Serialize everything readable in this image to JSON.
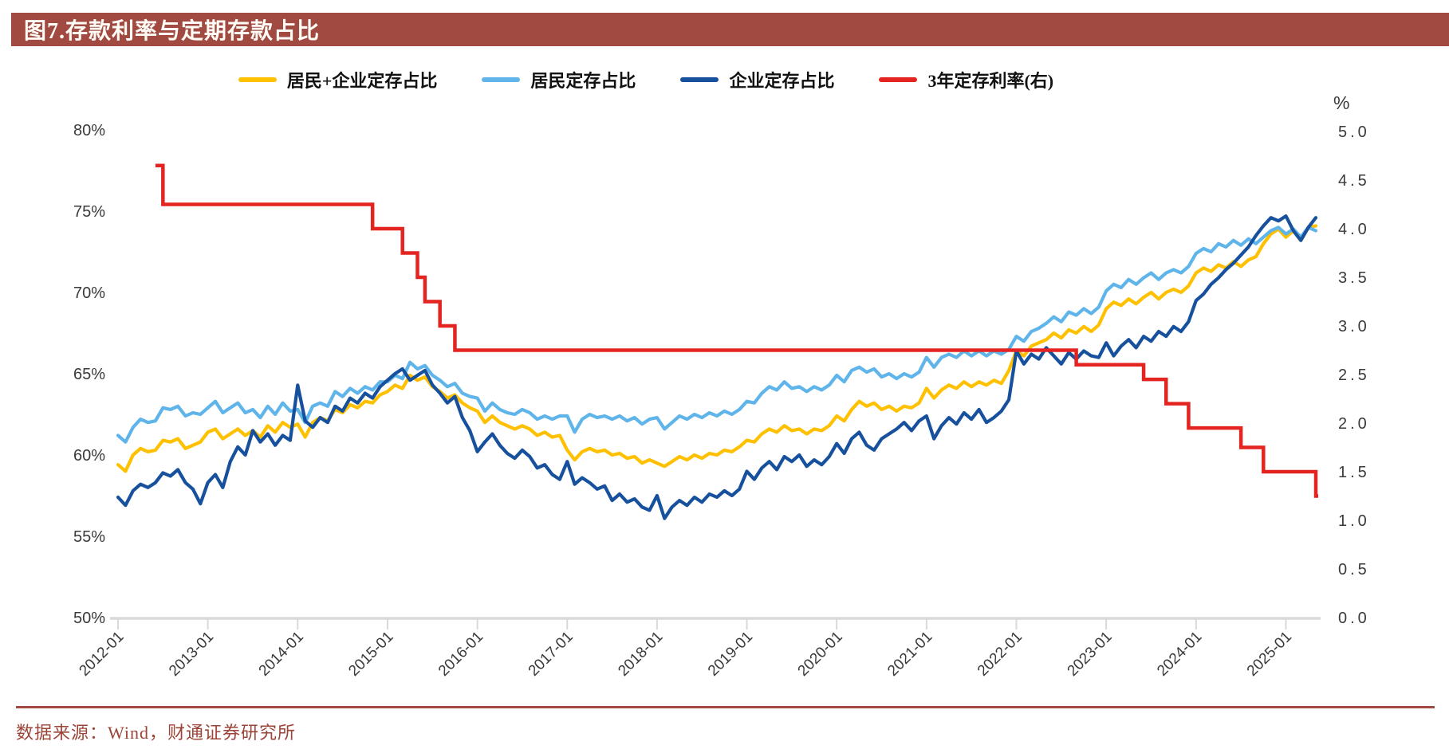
{
  "title": "图7.存款利率与定期存款占比",
  "source": "数据来源：Wind，财通证券研究所",
  "colors": {
    "title_bar_bg": "#A04A42",
    "title_text": "#FFFDF6",
    "source_text": "#9C4437",
    "divider": "#A04A42",
    "axis_text": "#3A3A3A",
    "axis_line": "#D9D9D9"
  },
  "legend": [
    {
      "label": "居民+企业定存占比",
      "color": "#FFC000"
    },
    {
      "label": "居民定存占比",
      "color": "#5FB4E9"
    },
    {
      "label": "企业定存占比",
      "color": "#17519E"
    },
    {
      "label": "3年定存利率(右)",
      "color": "#E32421"
    }
  ],
  "chart_data": {
    "type": "line",
    "title": "存款利率与定期存款占比",
    "frequency": "monthly",
    "start": "2012-01",
    "end": "2025-05",
    "grid": false,
    "legend_position": "top",
    "x_tick_labels": [
      "2012-01",
      "2013-01",
      "2014-01",
      "2015-01",
      "2016-01",
      "2017-01",
      "2018-01",
      "2019-01",
      "2020-01",
      "2021-01",
      "2022-01",
      "2023-01",
      "2024-01",
      "2025-01"
    ],
    "left_axis": {
      "min": 50,
      "max": 80,
      "labels": [
        "50%",
        "55%",
        "60%",
        "65%",
        "70%",
        "75%",
        "80%"
      ]
    },
    "right_axis": {
      "min": 0,
      "max": 5,
      "unit": "%",
      "labels": [
        "0.0",
        "0.5",
        "1.0",
        "1.5",
        "2.0",
        "2.5",
        "3.0",
        "3.5",
        "4.0",
        "4.5",
        "5.0"
      ]
    },
    "series": [
      {
        "name": "居民+企业定存占比",
        "axis": "left",
        "color": "#FFC000",
        "style": "line",
        "values": [
          59.4,
          59.0,
          60.0,
          60.4,
          60.2,
          60.3,
          60.9,
          60.8,
          61.0,
          60.4,
          60.6,
          60.8,
          61.4,
          61.6,
          61.0,
          61.3,
          61.6,
          61.2,
          61.5,
          61.1,
          61.8,
          61.4,
          62.0,
          61.7,
          61.9,
          61.1,
          62.0,
          62.3,
          62.1,
          62.8,
          62.6,
          63.1,
          62.9,
          63.3,
          63.2,
          63.7,
          63.9,
          64.3,
          64.1,
          64.9,
          64.6,
          64.8,
          64.2,
          63.9,
          63.5,
          63.7,
          63.2,
          62.9,
          62.7,
          62.0,
          62.4,
          62.0,
          61.8,
          61.6,
          61.8,
          61.6,
          61.2,
          61.4,
          61.1,
          61.2,
          60.3,
          59.7,
          60.2,
          60.4,
          60.2,
          60.3,
          60.0,
          60.1,
          59.8,
          59.9,
          59.5,
          59.7,
          59.5,
          59.3,
          59.6,
          59.9,
          59.7,
          60.0,
          59.8,
          60.1,
          60.0,
          60.3,
          60.2,
          60.5,
          60.9,
          60.8,
          61.3,
          61.6,
          61.4,
          61.8,
          61.5,
          61.6,
          61.3,
          61.6,
          61.5,
          61.8,
          62.4,
          62.1,
          62.8,
          63.3,
          63.0,
          63.2,
          62.8,
          63.0,
          62.7,
          63.0,
          62.9,
          63.2,
          64.1,
          63.5,
          64.0,
          64.3,
          64.1,
          64.5,
          64.2,
          64.5,
          64.3,
          64.6,
          64.4,
          65.2,
          66.4,
          66.1,
          66.7,
          66.9,
          67.1,
          67.5,
          67.2,
          67.7,
          67.5,
          67.9,
          67.6,
          68.0,
          69.0,
          69.4,
          69.2,
          69.6,
          69.3,
          69.7,
          70.0,
          69.6,
          70.0,
          70.2,
          70.0,
          70.4,
          71.2,
          71.5,
          71.3,
          71.7,
          71.5,
          71.9,
          71.6,
          72.0,
          72.2,
          73.0,
          73.6,
          73.9,
          73.4,
          73.8,
          73.2,
          74.0,
          74.1
        ]
      },
      {
        "name": "居民定存占比",
        "axis": "left",
        "color": "#5FB4E9",
        "style": "line",
        "values": [
          61.2,
          60.8,
          61.7,
          62.2,
          62.0,
          62.1,
          62.9,
          62.8,
          63.0,
          62.4,
          62.6,
          62.5,
          62.9,
          63.3,
          62.6,
          62.9,
          63.2,
          62.6,
          62.8,
          62.3,
          63.0,
          62.5,
          63.2,
          62.7,
          62.8,
          62.0,
          63.0,
          63.2,
          63.0,
          63.9,
          63.6,
          64.1,
          63.8,
          64.2,
          64.0,
          64.5,
          64.5,
          64.9,
          64.7,
          65.7,
          65.3,
          65.5,
          64.9,
          64.6,
          64.2,
          64.4,
          63.8,
          63.6,
          63.5,
          62.7,
          63.2,
          62.8,
          62.6,
          62.5,
          62.8,
          62.6,
          62.2,
          62.4,
          62.2,
          62.4,
          62.4,
          61.4,
          62.2,
          62.5,
          62.3,
          62.4,
          62.2,
          62.4,
          62.1,
          62.3,
          61.9,
          62.2,
          62.3,
          61.6,
          62.0,
          62.4,
          62.2,
          62.5,
          62.3,
          62.6,
          62.4,
          62.7,
          62.5,
          62.8,
          63.3,
          63.2,
          63.8,
          64.2,
          64.0,
          64.5,
          64.1,
          64.2,
          63.9,
          64.2,
          64.0,
          64.3,
          64.9,
          64.5,
          65.2,
          65.4,
          65.1,
          65.3,
          64.8,
          65.0,
          64.7,
          65.0,
          64.8,
          65.1,
          66.0,
          65.4,
          66.0,
          66.2,
          66.0,
          66.4,
          66.1,
          66.4,
          66.1,
          66.4,
          66.2,
          66.5,
          67.3,
          67.0,
          67.6,
          67.8,
          68.1,
          68.5,
          68.2,
          68.8,
          68.6,
          69.0,
          68.7,
          69.1,
          70.1,
          70.5,
          70.3,
          70.8,
          70.5,
          70.9,
          71.2,
          70.8,
          71.2,
          71.4,
          71.2,
          71.6,
          72.4,
          72.7,
          72.5,
          73.0,
          72.8,
          73.2,
          72.9,
          73.3,
          73.0,
          73.4,
          73.8,
          74.0,
          73.6,
          73.9,
          73.4,
          74.0,
          73.8
        ]
      },
      {
        "name": "企业定存占比",
        "axis": "left",
        "color": "#17519E",
        "style": "line",
        "values": [
          57.4,
          56.9,
          57.8,
          58.2,
          58.0,
          58.3,
          58.9,
          58.7,
          59.1,
          58.3,
          57.9,
          57.0,
          58.3,
          58.8,
          58.0,
          59.6,
          60.5,
          60.0,
          61.5,
          60.8,
          61.3,
          60.6,
          61.2,
          60.9,
          64.3,
          62.1,
          61.7,
          62.3,
          62.0,
          63.0,
          62.7,
          63.5,
          63.2,
          63.8,
          63.5,
          64.2,
          64.6,
          65.0,
          65.3,
          64.6,
          64.9,
          65.2,
          64.3,
          63.8,
          63.2,
          63.6,
          62.3,
          61.5,
          60.2,
          60.8,
          61.3,
          60.6,
          60.1,
          59.8,
          60.3,
          59.9,
          59.2,
          59.4,
          58.8,
          58.5,
          59.6,
          58.2,
          58.6,
          58.3,
          57.9,
          58.1,
          57.2,
          57.6,
          57.1,
          57.3,
          56.8,
          56.6,
          57.5,
          56.1,
          56.8,
          57.2,
          56.9,
          57.4,
          57.1,
          57.6,
          57.4,
          57.8,
          57.5,
          57.9,
          59.0,
          58.5,
          59.2,
          59.6,
          59.1,
          59.9,
          59.6,
          60.0,
          59.3,
          59.7,
          59.4,
          59.9,
          60.7,
          60.1,
          61.0,
          61.4,
          60.6,
          60.3,
          61.0,
          61.3,
          61.6,
          62.0,
          61.5,
          62.1,
          62.4,
          61.0,
          61.8,
          62.3,
          61.9,
          62.6,
          62.2,
          62.8,
          62.0,
          62.3,
          62.7,
          63.4,
          66.4,
          65.6,
          66.2,
          65.9,
          66.6,
          66.1,
          65.6,
          66.3,
          65.9,
          66.4,
          66.1,
          66.0,
          66.9,
          66.1,
          66.7,
          67.1,
          66.6,
          67.3,
          67.0,
          67.6,
          67.3,
          67.9,
          67.6,
          68.2,
          69.5,
          69.9,
          70.5,
          70.9,
          71.4,
          71.8,
          72.3,
          72.8,
          73.5,
          74.1,
          74.6,
          74.4,
          74.7,
          73.8,
          73.2,
          74.0,
          74.6
        ]
      },
      {
        "name": "3年定存利率(右)",
        "axis": "right",
        "color": "#E32421",
        "style": "step",
        "values": [
          null,
          null,
          null,
          null,
          null,
          4.65,
          4.25,
          4.25,
          4.25,
          4.25,
          4.25,
          4.25,
          4.25,
          4.25,
          4.25,
          4.25,
          4.25,
          4.25,
          4.25,
          4.25,
          4.25,
          4.25,
          4.25,
          4.25,
          4.25,
          4.25,
          4.25,
          4.25,
          4.25,
          4.25,
          4.25,
          4.25,
          4.25,
          4.25,
          4.0,
          4.0,
          4.0,
          4.0,
          3.75,
          3.75,
          3.5,
          3.25,
          3.25,
          3.0,
          3.0,
          2.75,
          2.75,
          2.75,
          2.75,
          2.75,
          2.75,
          2.75,
          2.75,
          2.75,
          2.75,
          2.75,
          2.75,
          2.75,
          2.75,
          2.75,
          2.75,
          2.75,
          2.75,
          2.75,
          2.75,
          2.75,
          2.75,
          2.75,
          2.75,
          2.75,
          2.75,
          2.75,
          2.75,
          2.75,
          2.75,
          2.75,
          2.75,
          2.75,
          2.75,
          2.75,
          2.75,
          2.75,
          2.75,
          2.75,
          2.75,
          2.75,
          2.75,
          2.75,
          2.75,
          2.75,
          2.75,
          2.75,
          2.75,
          2.75,
          2.75,
          2.75,
          2.75,
          2.75,
          2.75,
          2.75,
          2.75,
          2.75,
          2.75,
          2.75,
          2.75,
          2.75,
          2.75,
          2.75,
          2.75,
          2.75,
          2.75,
          2.75,
          2.75,
          2.75,
          2.75,
          2.75,
          2.75,
          2.75,
          2.75,
          2.75,
          2.75,
          2.75,
          2.75,
          2.75,
          2.75,
          2.75,
          2.75,
          2.75,
          2.6,
          2.6,
          2.6,
          2.6,
          2.6,
          2.6,
          2.6,
          2.6,
          2.6,
          2.45,
          2.45,
          2.45,
          2.2,
          2.2,
          2.2,
          1.95,
          1.95,
          1.95,
          1.95,
          1.95,
          1.95,
          1.95,
          1.75,
          1.75,
          1.75,
          1.5,
          1.5,
          1.5,
          1.5,
          1.5,
          1.5,
          1.5,
          1.25
        ]
      }
    ]
  }
}
